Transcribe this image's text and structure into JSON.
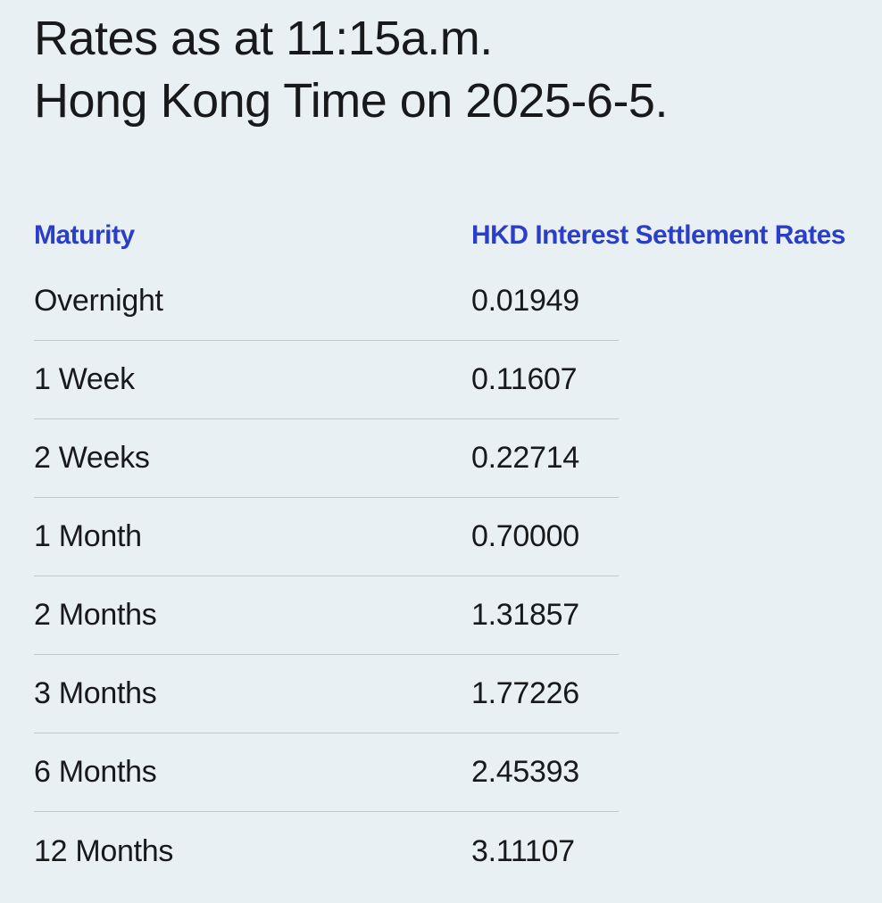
{
  "page": {
    "background": "#e9f0f3",
    "title_line1": "Rates as at 11:15a.m.",
    "title_line2": "Hong Kong Time on 2025-6-5."
  },
  "table": {
    "accent_color": "#2b3ec8",
    "divider_color": "#b9cbdf",
    "columns": {
      "maturity": "Maturity",
      "rates": "HKD Interest Settlement Rates"
    },
    "rows": [
      {
        "maturity": "Overnight",
        "rate": "0.01949"
      },
      {
        "maturity": "1 Week",
        "rate": "0.11607"
      },
      {
        "maturity": "2 Weeks",
        "rate": "0.22714"
      },
      {
        "maturity": "1 Month",
        "rate": "0.70000"
      },
      {
        "maturity": "2 Months",
        "rate": "1.31857"
      },
      {
        "maturity": "3 Months",
        "rate": "1.77226"
      },
      {
        "maturity": "6 Months",
        "rate": "2.45393"
      },
      {
        "maturity": "12 Months",
        "rate": "3.11107"
      }
    ]
  }
}
